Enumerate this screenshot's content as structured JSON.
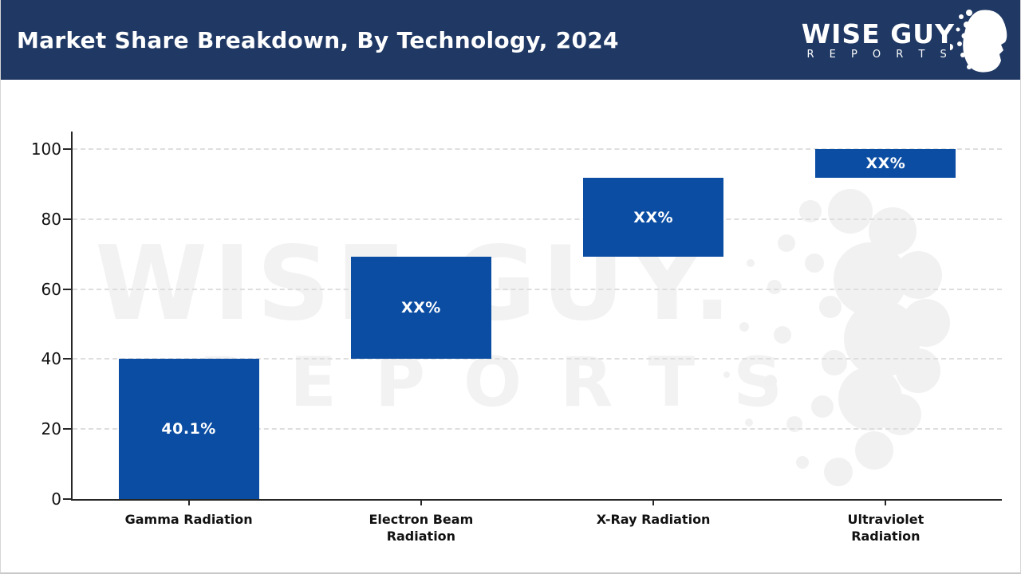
{
  "header": {
    "title": "Market Share Breakdown, By Technology, 2024",
    "bg_color": "#1f3864",
    "logo": {
      "wordmark": "WISE GUY",
      "subtext": "R E P O R T S",
      "face_icon": "dotted-face-profile"
    }
  },
  "watermark": {
    "line1": "WISE GUY.",
    "line2": "REPORTS"
  },
  "chart_data": {
    "type": "bar",
    "subtype": "waterfall",
    "title": "Market Share Breakdown, By Technology, 2024",
    "categories": [
      "Gamma Radiation",
      "Electron Beam Radiation",
      "X-Ray Radiation",
      "Ultraviolet Radiation"
    ],
    "bars": [
      {
        "category_lines": [
          "Gamma Radiation"
        ],
        "start": 0,
        "end": 40.1,
        "value_label": "40.1%"
      },
      {
        "category_lines": [
          "Electron Beam",
          "Radiation"
        ],
        "start": 40.1,
        "end": 69.2,
        "value_label": "XX%"
      },
      {
        "category_lines": [
          "X-Ray Radiation"
        ],
        "start": 69.2,
        "end": 91.8,
        "value_label": "XX%"
      },
      {
        "category_lines": [
          "Ultraviolet",
          "Radiation"
        ],
        "start": 91.8,
        "end": 100,
        "value_label": "XX%"
      }
    ],
    "y_ticks": [
      0,
      20,
      40,
      60,
      80,
      100
    ],
    "ylim": [
      0,
      100
    ],
    "xlabel": "",
    "ylabel": "",
    "grid": "horizontal-dashed",
    "legend": "none",
    "bar_color": "#0b4da2",
    "axis_color": "#262626"
  }
}
